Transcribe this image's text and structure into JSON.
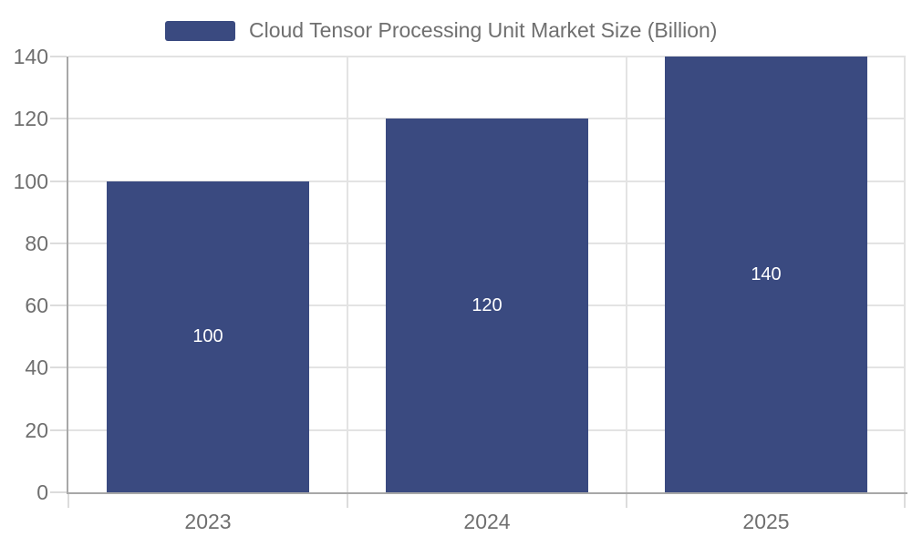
{
  "chart_data": {
    "type": "bar",
    "title": "Cloud Tensor Processing Unit Market Size (Billion)",
    "series_name": "Cloud Tensor Processing Unit Market Size (Billion)",
    "categories": [
      "2023",
      "2024",
      "2025"
    ],
    "values": [
      100,
      120,
      140
    ],
    "value_labels": [
      "100",
      "120",
      "140"
    ],
    "xlabel": "",
    "ylabel": "",
    "ylim": [
      0,
      140
    ],
    "yticks": [
      0,
      20,
      40,
      60,
      80,
      100,
      120,
      140
    ],
    "grid": true,
    "legend_position": "top-center",
    "value_label_position": "bar-center",
    "colors": {
      "bar": "#3A4A80",
      "bar_label_text": "#FFFFFF",
      "legend_text": "#6F6F6F",
      "tick_label_text": "#6F6F6F",
      "axis_line": "#A8A8A8",
      "grid_line": "#E3E3E3",
      "tick_mark": "#DCDCDC",
      "background": "#FFFFFF"
    }
  }
}
